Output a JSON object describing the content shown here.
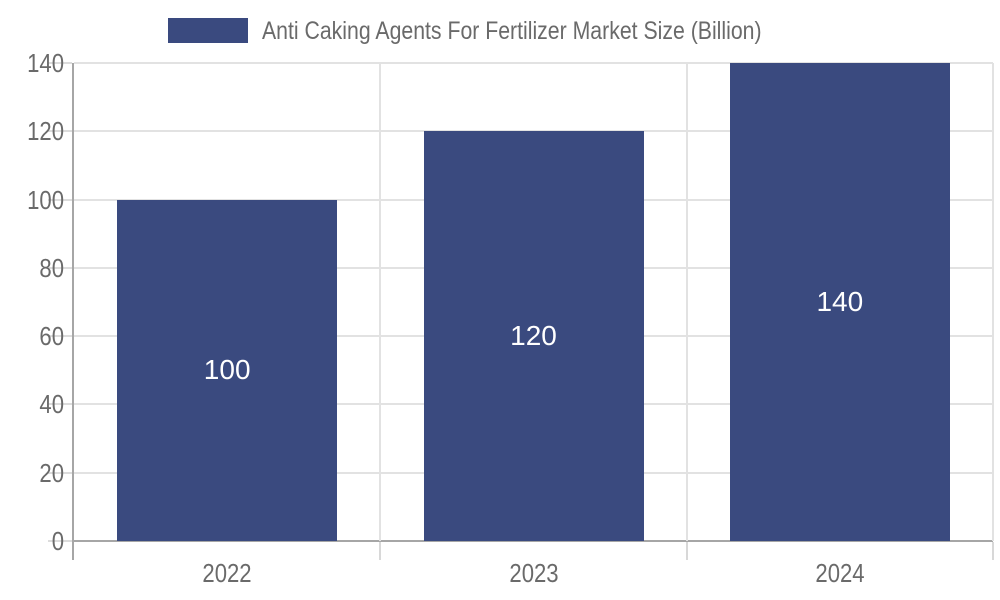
{
  "chart_data": {
    "type": "bar",
    "title": "Anti Caking Agents For Fertilizer Market Size (Billion)",
    "categories": [
      "2022",
      "2023",
      "2024"
    ],
    "values": [
      100,
      120,
      140
    ],
    "data_labels": [
      "100",
      "120",
      "140"
    ],
    "xlabel": "",
    "ylabel": "",
    "ylim": [
      0,
      140
    ],
    "yticks": [
      0,
      20,
      40,
      60,
      80,
      100,
      120,
      140
    ],
    "grid": true,
    "legend_position": "top-center",
    "colors": {
      "bar": "#3a4a7f",
      "bar_label_text": "#ffffff",
      "axis_text": "#6a6a6a",
      "axis_line": "#a6a6a6",
      "gridline": "#e2e2e2",
      "background": "#ffffff"
    }
  }
}
